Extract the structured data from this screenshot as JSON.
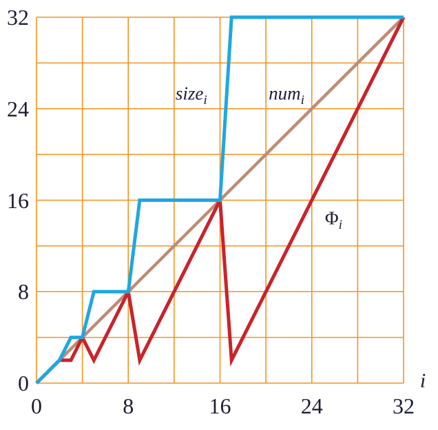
{
  "chart_data": {
    "type": "line",
    "title": "",
    "xlabel": "i",
    "ylabel": "",
    "xlim": [
      0,
      32
    ],
    "ylim": [
      0,
      32
    ],
    "grid": true,
    "grid_step": 4,
    "legend_position": "inline-annotations",
    "x_ticks": [
      "0",
      "8",
      "16",
      "24",
      "32"
    ],
    "x_tick_values": [
      0,
      8,
      16,
      24,
      32
    ],
    "y_ticks": [
      "0",
      "8",
      "16",
      "24",
      "32"
    ],
    "y_tick_values": [
      0,
      8,
      16,
      24,
      32
    ],
    "colors": {
      "grid": "#F6921E",
      "text": "#1D1D33",
      "size_line": "#1FA7E1",
      "num_line": "#BE8B77",
      "phi_line": "#C9232B"
    },
    "series": [
      {
        "name": "num",
        "label": "num",
        "label_sub": "i",
        "label_italic": true,
        "color": "#BE8B77",
        "stroke_width": 4.5,
        "label_pos": [
          21.8,
          25.3
        ],
        "points": [
          [
            0,
            0
          ],
          [
            32,
            32
          ]
        ]
      },
      {
        "name": "phi",
        "label": "Φ",
        "label_sub": "i",
        "label_italic": false,
        "color": "#C9232B",
        "stroke_width": 5,
        "label_pos": [
          25.9,
          14.4
        ],
        "points": [
          [
            0,
            0
          ],
          [
            1,
            1
          ],
          [
            2,
            2
          ],
          [
            3,
            2
          ],
          [
            4,
            4
          ],
          [
            5,
            2
          ],
          [
            8,
            8
          ],
          [
            9,
            2
          ],
          [
            16,
            16
          ],
          [
            17,
            2
          ],
          [
            32,
            32
          ]
        ]
      },
      {
        "name": "size",
        "label": "size",
        "label_sub": "i",
        "label_italic": true,
        "color": "#1FA7E1",
        "stroke_width": 5,
        "label_pos": [
          13.5,
          25.3
        ],
        "points": [
          [
            0,
            0
          ],
          [
            1,
            1
          ],
          [
            2,
            2
          ],
          [
            3,
            4
          ],
          [
            4,
            4
          ],
          [
            5,
            8
          ],
          [
            8,
            8
          ],
          [
            9,
            16
          ],
          [
            16,
            16
          ],
          [
            17,
            32
          ],
          [
            32,
            32
          ]
        ]
      }
    ]
  }
}
